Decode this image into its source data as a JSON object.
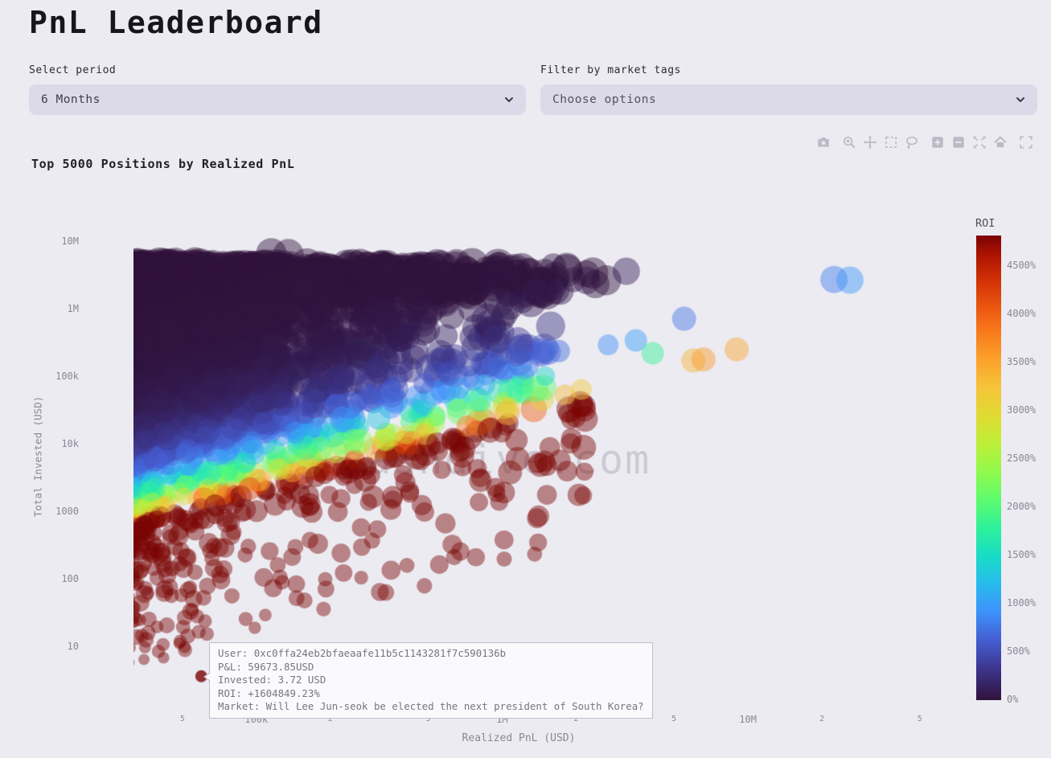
{
  "page": {
    "title": "PnL Leaderboard",
    "background": "#ECEBF2"
  },
  "filters": {
    "period": {
      "label": "Select period",
      "value": "6 Months"
    },
    "tags": {
      "label": "Filter by market tags",
      "value": "Choose options"
    }
  },
  "modebar": {
    "tools": [
      "download-plot-as-png",
      "zoom",
      "pan",
      "box-select",
      "lasso-select",
      "zoom-in",
      "zoom-out",
      "autoscale",
      "reset-axes",
      "fullscreen"
    ]
  },
  "chart_data": {
    "type": "scatter",
    "title": "Top 5000 Positions by Realized PnL",
    "xlabel": "Realized PnL (USD)",
    "ylabel": "Total Invested (USD)",
    "x_scale": "log",
    "y_scale": "log",
    "grid": false,
    "x_range_log10": [
      4.5,
      7.87
    ],
    "y_range_log10": [
      0.05,
      7.55
    ],
    "x_ticks": [
      {
        "label": "5",
        "log10": 4.69897,
        "minor": true
      },
      {
        "label": "100k",
        "log10": 5,
        "minor": false
      },
      {
        "label": "2",
        "log10": 5.30103,
        "minor": true
      },
      {
        "label": "5",
        "log10": 5.69897,
        "minor": true
      },
      {
        "label": "1M",
        "log10": 6,
        "minor": false
      },
      {
        "label": "2",
        "log10": 6.30103,
        "minor": true
      },
      {
        "label": "5",
        "log10": 6.69897,
        "minor": true
      },
      {
        "label": "10M",
        "log10": 7,
        "minor": false
      },
      {
        "label": "2",
        "log10": 7.30103,
        "minor": true
      },
      {
        "label": "5",
        "log10": 7.69897,
        "minor": true
      }
    ],
    "y_ticks": [
      {
        "label": "10M",
        "log10": 7
      },
      {
        "label": "1M",
        "log10": 6
      },
      {
        "label": "100k",
        "log10": 5
      },
      {
        "label": "10k",
        "log10": 4
      },
      {
        "label": "1000",
        "log10": 3
      },
      {
        "label": "100",
        "log10": 2
      },
      {
        "label": "10",
        "log10": 1
      }
    ],
    "colorbar": {
      "title": "ROI",
      "max_pct": 4820,
      "ticks": [
        {
          "label": "0%",
          "pct": 0
        },
        {
          "label": "500%",
          "pct": 500
        },
        {
          "label": "1000%",
          "pct": 1000
        },
        {
          "label": "1500%",
          "pct": 1500
        },
        {
          "label": "2000%",
          "pct": 2000
        },
        {
          "label": "2500%",
          "pct": 2500
        },
        {
          "label": "3000%",
          "pct": 3000
        },
        {
          "label": "3500%",
          "pct": 3500
        },
        {
          "label": "4000%",
          "pct": 4000
        },
        {
          "label": "4500%",
          "pct": 4500
        }
      ],
      "colormap": "turbo",
      "stops": [
        [
          0,
          "#30123B"
        ],
        [
          0.07,
          "#3D3790"
        ],
        [
          0.13,
          "#455ED3"
        ],
        [
          0.19,
          "#3D92FB"
        ],
        [
          0.25,
          "#28BBEC"
        ],
        [
          0.31,
          "#18DCC6"
        ],
        [
          0.37,
          "#2EF19B"
        ],
        [
          0.43,
          "#5DFB6F"
        ],
        [
          0.49,
          "#8FFA4C"
        ],
        [
          0.55,
          "#BCEF38"
        ],
        [
          0.61,
          "#DFDB32"
        ],
        [
          0.67,
          "#F5C53A"
        ],
        [
          0.73,
          "#FCA32C"
        ],
        [
          0.79,
          "#F97C1D"
        ],
        [
          0.85,
          "#E9530E"
        ],
        [
          0.91,
          "#CE2D04"
        ],
        [
          0.96,
          "#AB1201"
        ],
        [
          1,
          "#7A0403"
        ]
      ]
    },
    "marker": {
      "opacity": 0.45
    },
    "watermark": "hashdive.com",
    "hover_point": {
      "user": "0xc0ffa24eb2bfaeaafe11b5c1143281f7c590136b",
      "pnl_usd": 59673.85,
      "invested_usd": 3.72,
      "roi_pct": 1604849.23,
      "market": "Will Lee Jun-seok be elected the next president of South Korea?",
      "radius": 7.5
    },
    "tooltip": {
      "lines": [
        "User: 0xc0ffa24eb2bfaeaafe11b5c1143281f7c590136b",
        "P&L: 59673.85USD",
        "Invested: 3.72 USD",
        "ROI: +1604849.23%",
        "Market: Will Lee Jun-seok be elected the next president of South Korea?"
      ]
    },
    "featured_points_columns": [
      "pnl_usd",
      "invested_usd",
      "roi_pct",
      "radius_px"
    ],
    "featured_points": [
      [
        115000,
        6800000,
        1.7,
        19
      ],
      [
        135000,
        6600000,
        2.0,
        19
      ],
      [
        157000,
        2100000,
        7.5,
        17
      ],
      [
        325000,
        4500000,
        7.2,
        18
      ],
      [
        265000,
        5000000,
        5.3,
        17
      ],
      [
        1380000,
        1870000,
        74,
        17
      ],
      [
        1720000,
        1870000,
        92,
        17
      ],
      [
        3200000,
        3700000,
        86,
        17
      ],
      [
        22400000,
        2800000,
        800,
        17
      ],
      [
        26000000,
        2740000,
        950,
        17
      ],
      [
        5500000,
        733000,
        750,
        15
      ],
      [
        2700000,
        300000,
        900,
        13
      ],
      [
        3500000,
        350000,
        1000,
        14
      ],
      [
        4100000,
        225000,
        1820,
        14
      ],
      [
        1500000,
        104000,
        1440,
        12
      ],
      [
        1150000,
        217000,
        530,
        15
      ],
      [
        1450000,
        227000,
        640,
        14
      ],
      [
        1700000,
        243000,
        700,
        14
      ],
      [
        9000000,
        257000,
        3500,
        15
      ],
      [
        6000000,
        176000,
        3400,
        15
      ],
      [
        6600000,
        183000,
        3600,
        15
      ],
      [
        1800000,
        54500,
        3300,
        13
      ],
      [
        2100000,
        65600,
        3200,
        13
      ],
      [
        1070000,
        35600,
        3000,
        13
      ],
      [
        1850000,
        28900,
        6400,
        12
      ],
      [
        1900000,
        23700,
        8000,
        12
      ],
      [
        480000,
        80000,
        600,
        13
      ],
      [
        560000,
        62000,
        900,
        12
      ],
      [
        850000,
        77000,
        1100,
        13
      ],
      [
        540000,
        25700,
        2100,
        12
      ],
      [
        410000,
        14100,
        2900,
        12
      ],
      [
        690000,
        4600,
        15000,
        11
      ],
      [
        950000,
        1900,
        50000,
        11
      ],
      [
        1030000,
        870000,
        118,
        16
      ]
    ],
    "cloud": {
      "description": "procedural approximation of ~5000 positions: dense low-ROI purple wedge, rainbow ROI band on its lower edge, sparse extreme-ROI maroon points below",
      "seed": 1337,
      "n": 4200,
      "components": [
        {
          "name": "core",
          "weight": 0.78,
          "lp": {
            "base": 4.44,
            "span": 2.05,
            "pow1": 2.2,
            "pow2": 0.8
          },
          "lr": {
            "min": -0.7,
            "max": 2.6,
            "pow": 1.0
          }
        },
        {
          "name": "band",
          "weight": 0.12,
          "lp": {
            "base": 4.44,
            "span": 1.75,
            "pow1": 2.4,
            "pow2": 0
          },
          "lr": {
            "min": 2.65,
            "max": 3.68,
            "pow": 1.35
          }
        },
        {
          "name": "extreme",
          "weight": 0.1,
          "lp": {
            "base": 4.44,
            "span": 1.9,
            "pow1": 2.6,
            "pow2": 0
          },
          "lr": {
            "min": 3.7,
            "max": 5.8,
            "pow": 1.8
          }
        }
      ],
      "top": {
        "limit": 6.68,
        "squash_base": 6.22,
        "squash_span": 0.46
      },
      "floor": {
        "limit": 0.45,
        "keep": 0.3,
        "span": 0.6
      },
      "radius": {
        "base": 6.5,
        "per_decade": 1.8,
        "jitter": [
          0.85,
          1.15
        ]
      }
    }
  }
}
